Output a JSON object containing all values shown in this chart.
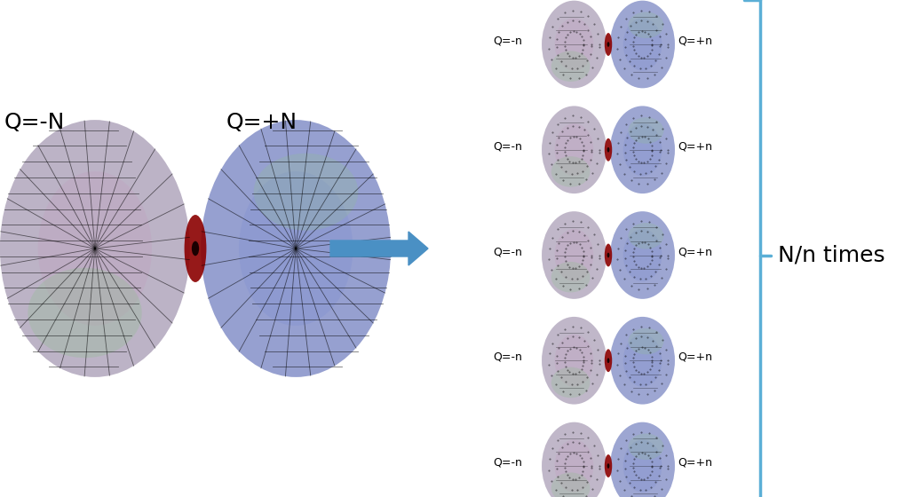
{
  "bg_color": "#ffffff",
  "left_label_neg": "Q=-N",
  "left_label_pos": "Q=+N",
  "small_label_neg": "Q=-n",
  "small_label_pos": "Q=+n",
  "brace_label": "N/n times",
  "n_small": 5,
  "arrow_color": "#4a90c4",
  "brace_color": "#5bafd6",
  "label_fontsize": 18,
  "small_label_fontsize": 9,
  "brace_fontsize": 18
}
